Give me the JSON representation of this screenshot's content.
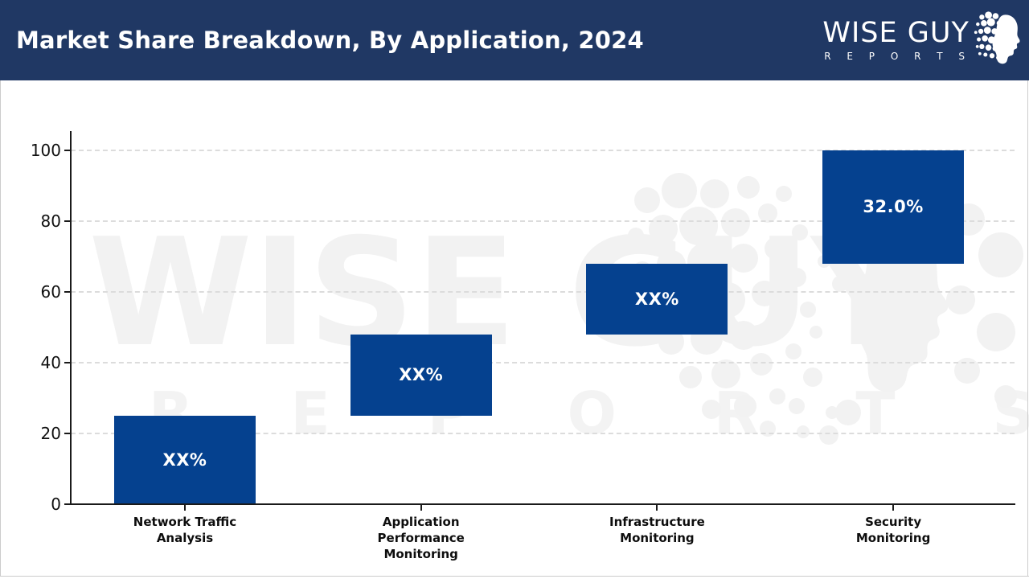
{
  "header": {
    "title": "Market Share Breakdown, By Application, 2024",
    "logo": {
      "wordmark": "WISE GUY",
      "subtext": "R E P O R T S"
    }
  },
  "watermark": {
    "wordmark": "WISE GUY",
    "subtext": "R E P O R T S"
  },
  "colors": {
    "header_bg": "#203864",
    "bar": "#05418f",
    "value_label": "#ffffff",
    "gridline": "#dcdcdc",
    "watermark": "#f2f2f2"
  },
  "chart_data": {
    "type": "bar",
    "variant": "floating-waterfall",
    "title": "Market Share Breakdown, By Application, 2024",
    "categories": [
      "Network Traffic Analysis",
      "Application Performance Monitoring",
      "Infrastructure Monitoring",
      "Security Monitoring"
    ],
    "category_lines": [
      [
        "Network Traffic",
        "Analysis"
      ],
      [
        "Application",
        "Performance",
        "Monitoring"
      ],
      [
        "Infrastructure",
        "Monitoring"
      ],
      [
        "Security",
        "Monitoring"
      ]
    ],
    "segments": [
      {
        "category": "Network Traffic Analysis",
        "start": 0,
        "end": 25,
        "label": "XX%"
      },
      {
        "category": "Application Performance Monitoring",
        "start": 25,
        "end": 48,
        "label": "XX%"
      },
      {
        "category": "Infrastructure Monitoring",
        "start": 48,
        "end": 68,
        "label": "XX%"
      },
      {
        "category": "Security Monitoring",
        "start": 68,
        "end": 100,
        "label": "32.0%"
      }
    ],
    "yticks": [
      0,
      20,
      40,
      60,
      80,
      100
    ],
    "ylim": [
      0,
      105
    ],
    "xlabel": "",
    "ylabel": "",
    "grid": "dashed-horizontal",
    "legend": "none",
    "bar_color": "#05418f"
  }
}
